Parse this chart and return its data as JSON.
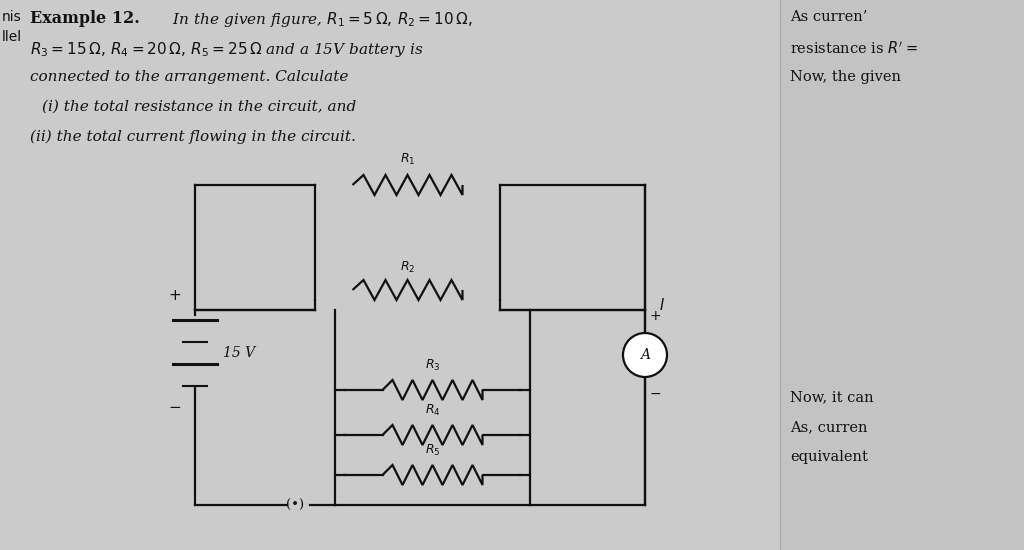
{
  "bg_left": "#cccbcb",
  "bg_right": "#c4c3c3",
  "text_color": "#1a1a1a",
  "lc": "#111111",
  "lw": 1.6,
  "font_body": 11.0,
  "font_small": 9.0,
  "right_texts_top": [
    "As curren’",
    "resistance is R’=",
    "Now, the given"
  ],
  "right_texts_bot": [
    "Now, it can",
    "As, curren",
    "equivalent"
  ]
}
